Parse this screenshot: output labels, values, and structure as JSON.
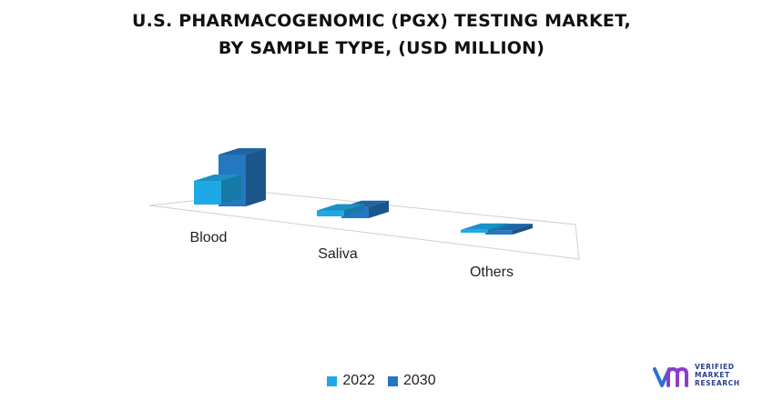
{
  "title_lines": [
    "U.S. PHARMACOGENOMIC (PGX) TESTING MARKET,",
    "BY SAMPLE TYPE, (USD MILLION)"
  ],
  "chart_data": {
    "type": "bar",
    "style": "3d-clustered-column",
    "title": "U.S. PHARMACOGENOMIC (PGX) TESTING MARKET, BY SAMPLE TYPE, (USD MILLION)",
    "categories": [
      "Blood",
      "Saliva",
      "Others"
    ],
    "series": [
      {
        "name": "2022",
        "values": [
          32,
          8,
          4
        ],
        "color": "#1ea9e6"
      },
      {
        "name": "2030",
        "values": [
          70,
          15,
          6
        ],
        "color": "#2477c0"
      }
    ],
    "xlabel": "",
    "ylabel": "",
    "axes_visible": false,
    "grid": false,
    "legend_position": "bottom"
  },
  "legend": {
    "label_2022": "2022",
    "label_2030": "2030",
    "color_2022": "#1ea9e6",
    "color_2030": "#2477c0"
  },
  "logo": {
    "line1": "VERIFIED",
    "line2": "MARKET",
    "line3": "RESEARCH",
    "icon": "vmr-logo-icon",
    "color": "#2a3f8f"
  }
}
